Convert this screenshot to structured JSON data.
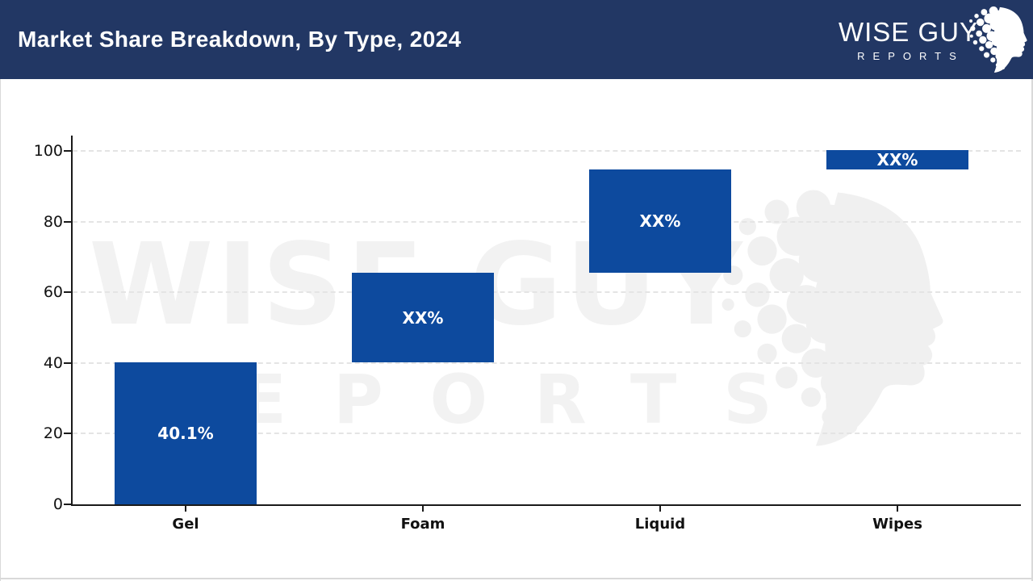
{
  "header": {
    "title": "Market Share Breakdown, By Type, 2024",
    "logo_line1": "WISE GUY",
    "logo_line2": "REPORTS"
  },
  "watermark": {
    "line1": "WISE GUY",
    "line2": "REPORTS"
  },
  "chart_data": {
    "type": "bar",
    "subtype": "waterfall",
    "title": "Market Share Breakdown, By Type, 2024",
    "categories": [
      "Gel",
      "Foam",
      "Liquid",
      "Wipes"
    ],
    "bars": [
      {
        "category": "Gel",
        "start": 0,
        "end": 40.1,
        "label": "40.1%"
      },
      {
        "category": "Foam",
        "start": 40.1,
        "end": 65.6,
        "label": "XX%"
      },
      {
        "category": "Liquid",
        "start": 65.6,
        "end": 94.8,
        "label": "XX%"
      },
      {
        "category": "Wipes",
        "start": 94.8,
        "end": 100.2,
        "label": "XX%"
      }
    ],
    "yticks": [
      0,
      20,
      40,
      60,
      80,
      100
    ],
    "ylim": [
      0,
      105
    ],
    "xlabel": "",
    "ylabel": "",
    "grid": "horizontal-dashed",
    "legend": "none",
    "colors": {
      "bar": "#0D4A9E",
      "bar_label": "#FFFFFF",
      "header_bg": "#223764",
      "grid_line": "#E4E4E4",
      "axis": "#1A1A1A",
      "watermark": "#F2F2F2"
    }
  }
}
